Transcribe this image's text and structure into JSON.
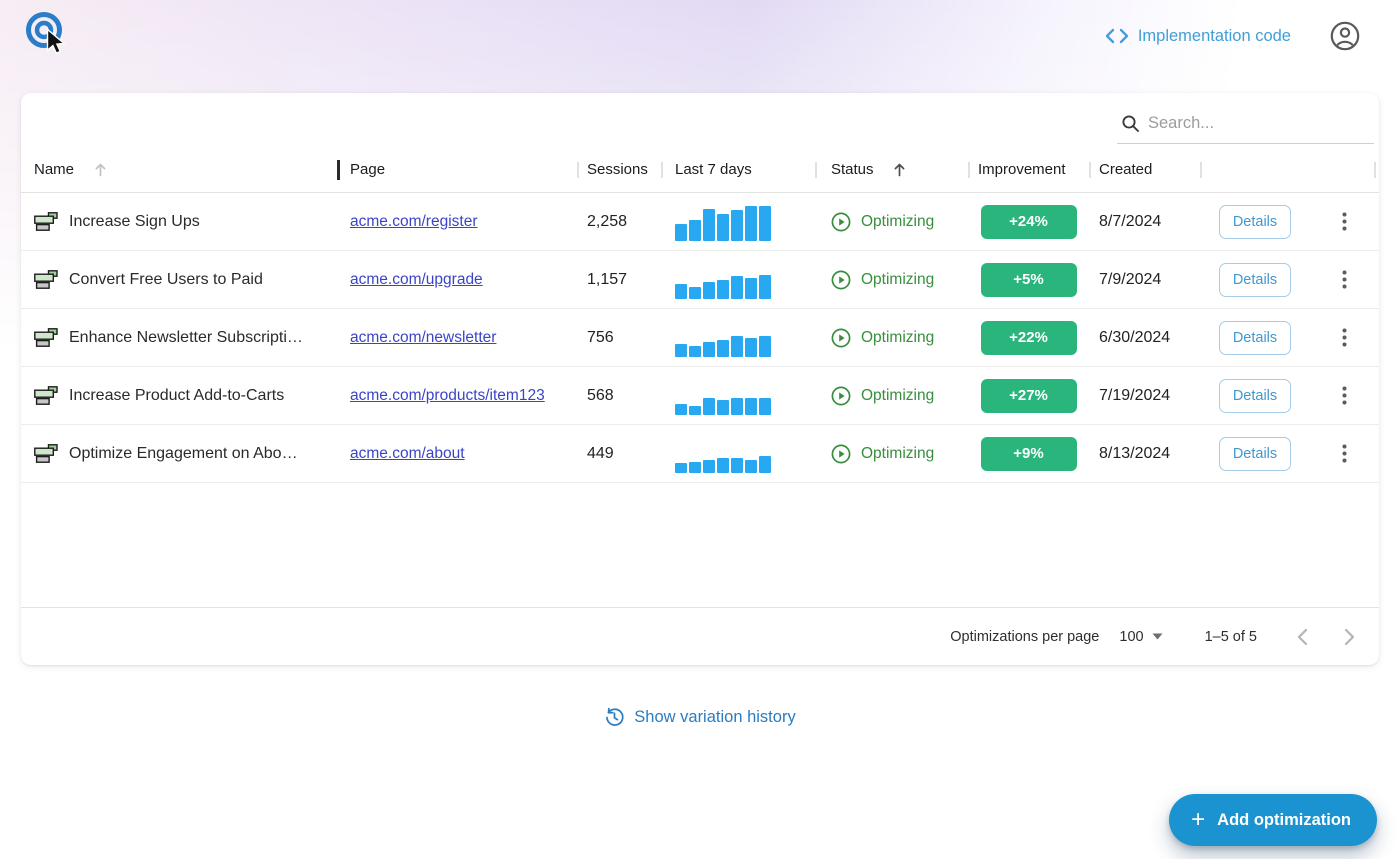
{
  "topbar": {
    "implementation_code": "Implementation code"
  },
  "search": {
    "placeholder": "Search..."
  },
  "table": {
    "headers": {
      "name": "Name",
      "page": "Page",
      "sessions": "Sessions",
      "last7": "Last 7 days",
      "status": "Status",
      "improvement": "Improvement",
      "created": "Created"
    },
    "details_label": "Details",
    "rows": [
      {
        "name": "Increase Sign Ups",
        "page": "acme.com/register",
        "sessions": "2,258",
        "spark": [
          44,
          55,
          83,
          69,
          80,
          92,
          92
        ],
        "status": "Optimizing",
        "improvement": "+24%",
        "created": "8/7/2024"
      },
      {
        "name": "Convert Free Users to Paid",
        "page": "acme.com/upgrade",
        "sessions": "1,157",
        "spark": [
          38,
          30,
          43,
          48,
          58,
          53,
          62
        ],
        "status": "Optimizing",
        "improvement": "+5%",
        "created": "7/9/2024"
      },
      {
        "name": "Enhance Newsletter Subscripti…",
        "page": "acme.com/newsletter",
        "sessions": "756",
        "spark": [
          33,
          28,
          39,
          43,
          53,
          48,
          53
        ],
        "status": "Optimizing",
        "improvement": "+22%",
        "created": "6/30/2024"
      },
      {
        "name": "Increase Product Add-to-Carts",
        "page": "acme.com/products/item123",
        "sessions": "568",
        "spark": [
          28,
          22,
          43,
          38,
          43,
          43,
          43
        ],
        "status": "Optimizing",
        "improvement": "+27%",
        "created": "7/19/2024"
      },
      {
        "name": "Optimize Engagement on Abo…",
        "page": "acme.com/about",
        "sessions": "449",
        "spark": [
          24,
          28,
          33,
          38,
          38,
          33,
          43
        ],
        "status": "Optimizing",
        "improvement": "+9%",
        "created": "8/13/2024"
      }
    ]
  },
  "footer": {
    "per_page_label": "Optimizations per page",
    "per_page_value": "100",
    "range": "1–5 of 5"
  },
  "history_link": "Show variation history",
  "fab": {
    "label": "Add optimization"
  },
  "colors": {
    "accent_blue": "#419ed6",
    "history_blue": "#2b7cc0",
    "bar_blue": "#29a8f2",
    "badge_green": "#2ab57d",
    "status_green": "#388e3c",
    "link_indigo": "#3b44c8",
    "fab_blue": "#1b93d0",
    "logo_blue": "#2a7dc8"
  }
}
